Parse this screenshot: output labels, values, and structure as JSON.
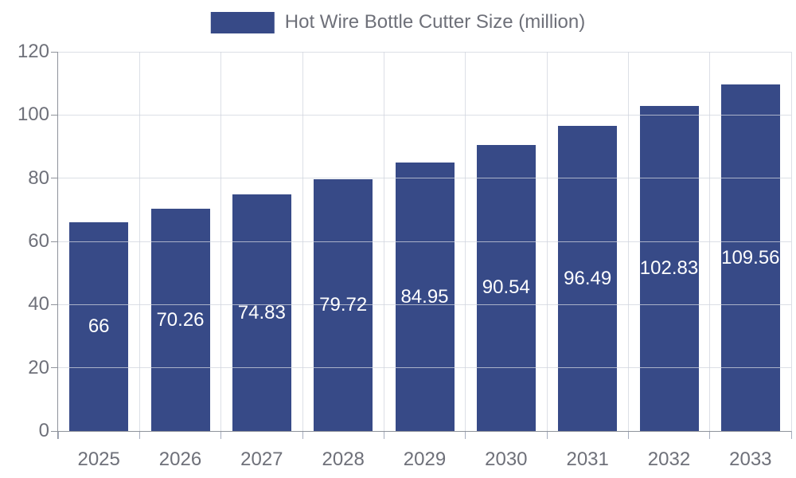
{
  "legend": {
    "label": "Hot Wire Bottle Cutter Size (million)"
  },
  "colors": {
    "bar": "#374a87",
    "grid": "rgba(208,212,222,0.75)",
    "axis": "#8f939b",
    "tick": "#a6adbe",
    "axis_label": "#6e7079",
    "value_label": "#ffffff",
    "background": "#ffffff"
  },
  "chart_data": {
    "type": "bar",
    "title": "",
    "xlabel": "",
    "ylabel": "",
    "categories": [
      "2025",
      "2026",
      "2027",
      "2028",
      "2029",
      "2030",
      "2031",
      "2032",
      "2033"
    ],
    "series": [
      {
        "name": "Hot Wire Bottle Cutter Size (million)",
        "values": [
          66,
          70.26,
          74.83,
          79.72,
          84.95,
          90.54,
          96.49,
          102.83,
          109.56
        ]
      }
    ],
    "value_labels": [
      "66",
      "70.26",
      "74.83",
      "79.72",
      "84.95",
      "90.54",
      "96.49",
      "102.83",
      "109.56"
    ],
    "ylim": [
      0,
      120
    ],
    "yticks": [
      0,
      20,
      40,
      60,
      80,
      100,
      120
    ],
    "grid": true,
    "legend_position": "top",
    "value_label_position": "inside-at-half-bar-height"
  }
}
